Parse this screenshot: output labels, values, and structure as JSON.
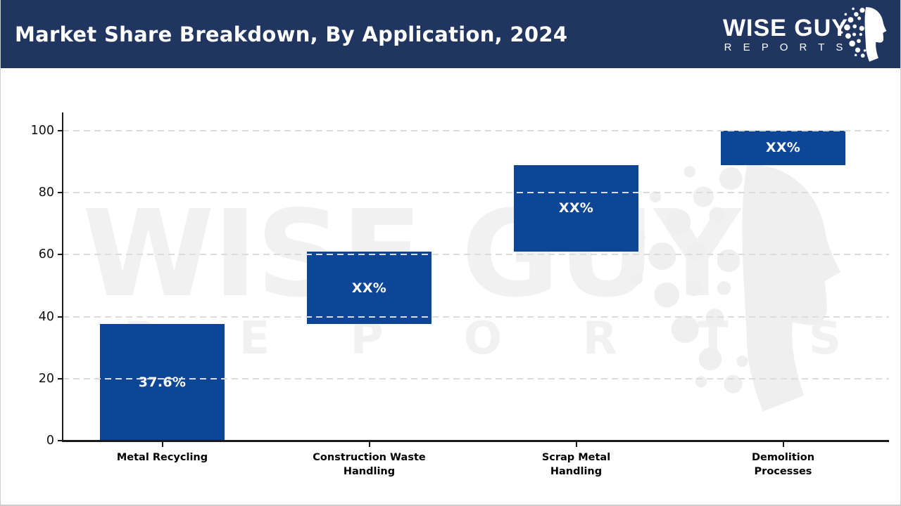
{
  "header": {
    "title": "Market Share Breakdown, By Application, 2024",
    "logo": {
      "line1": "WISE GUY",
      "line2": "R E P O R T S"
    }
  },
  "watermark": {
    "line1": "WISE GUY",
    "line2": "R E P O R T S"
  },
  "colors": {
    "header_bg": "#203560",
    "bar": "#0d4696",
    "grid": "#dcdcdc",
    "axis": "#1a1a1a",
    "bar_label": "#ffffff",
    "watermark": "#f1f1f1"
  },
  "chart_data": {
    "type": "bar",
    "subtype": "waterfall",
    "title": "Market Share Breakdown, By Application, 2024",
    "categories": [
      "Metal Recycling",
      "Construction Waste Handling",
      "Scrap Metal Handling",
      "Demolition Processes"
    ],
    "categories_lines": [
      [
        "Metal Recycling"
      ],
      [
        "Construction Waste",
        "Handling"
      ],
      [
        "Scrap Metal",
        "Handling"
      ],
      [
        "Demolition",
        "Processes"
      ]
    ],
    "segments": [
      {
        "category": "Metal Recycling",
        "start": 0,
        "end": 37.6,
        "label": "37.6%"
      },
      {
        "category": "Construction Waste Handling",
        "start": 37.6,
        "end": 61,
        "label": "XX%"
      },
      {
        "category": "Scrap Metal Handling",
        "start": 61,
        "end": 89,
        "label": "XX%"
      },
      {
        "category": "Demolition Processes",
        "start": 89,
        "end": 100,
        "label": "XX%"
      }
    ],
    "xlabel": "",
    "ylabel": "",
    "ylim": [
      0,
      100
    ],
    "yticks": [
      0,
      20,
      40,
      60,
      80,
      100
    ],
    "ytick_labels": [
      "0",
      "20",
      "40",
      "60",
      "80",
      "100"
    ],
    "grid": "horizontal-dashed",
    "legend": "none",
    "bar_color": "#0d4696"
  }
}
